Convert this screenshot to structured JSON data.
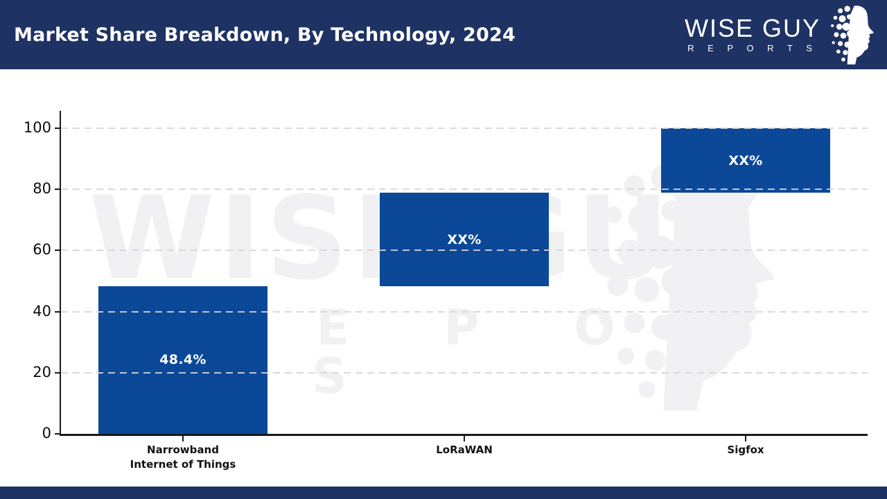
{
  "header": {
    "title": "Market Share Breakdown, By Technology, 2024",
    "logo": {
      "wordmark": "WISE GUY",
      "subtext": "R E P O R T S"
    }
  },
  "watermark": {
    "wordmark": "WISE GUY",
    "subtext": "R E P O R T S"
  },
  "footer": {},
  "colors": {
    "header_bg": "#1f3264",
    "footer_bg": "#1f3264",
    "bar": "#0b4898",
    "grid": "#d6d6d6",
    "axis": "#1a1a1a",
    "watermark": "#f1f1f3",
    "bar_label": "#ffffff"
  },
  "chart_data": {
    "type": "bar",
    "subtype": "waterfall",
    "title": "Market Share Breakdown, By Technology, 2024",
    "categories": [
      "Narrowband Internet of Things",
      "LoRaWAN",
      "Sigfox"
    ],
    "category_lines": [
      [
        "Narrowband",
        "Internet of Things"
      ],
      [
        "LoRaWAN"
      ],
      [
        "Sigfox"
      ]
    ],
    "series": [
      {
        "name": "Market share (%)",
        "segments": [
          [
            0,
            48.4
          ],
          [
            48.4,
            78.8
          ],
          [
            78.8,
            100
          ]
        ]
      }
    ],
    "bar_labels": [
      "48.4%",
      "XX%",
      "XX%"
    ],
    "ylim": [
      0,
      100
    ],
    "yticks": [
      0,
      20,
      40,
      60,
      80,
      100
    ],
    "grid": "horizontal-dashed",
    "legend": "none"
  }
}
